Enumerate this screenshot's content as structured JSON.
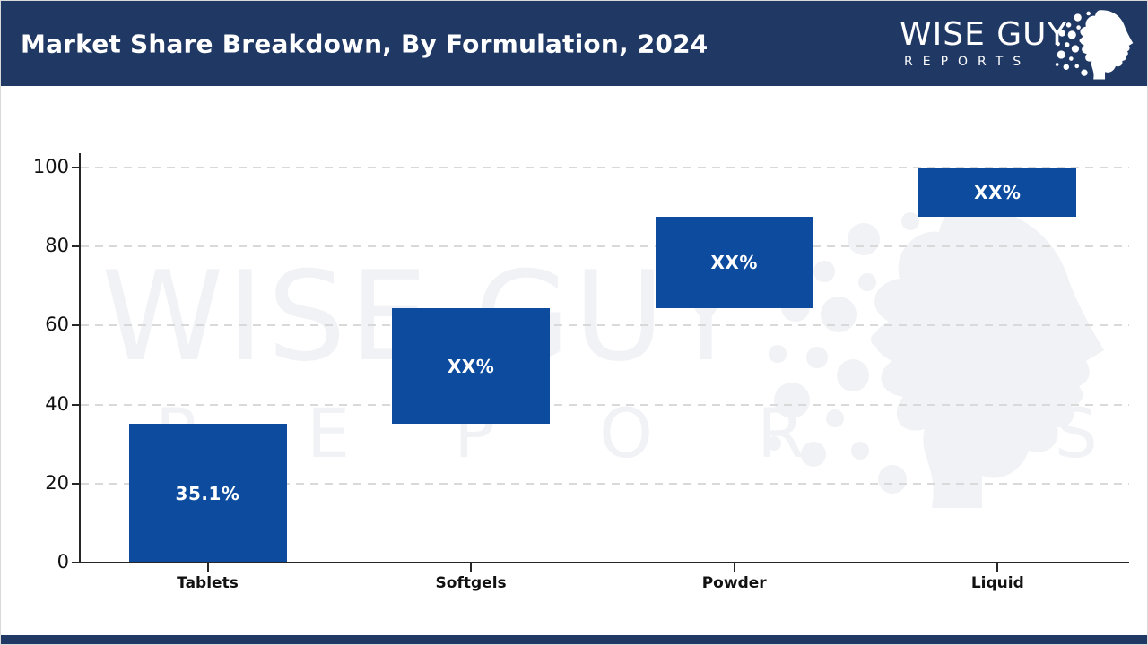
{
  "header": {
    "title": "Market Share Breakdown, By Formulation, 2024",
    "logo": {
      "brand_top": "WISE GUY",
      "brand_bottom": "REPORTS"
    }
  },
  "watermark": {
    "brand_top": "WISE GUY",
    "brand_bottom": "R E P O R T S"
  },
  "chart_data": {
    "type": "bar",
    "variant": "waterfall",
    "title": "Market Share Breakdown, By Formulation, 2024",
    "categories": [
      "Tablets",
      "Softgels",
      "Powder",
      "Liquid"
    ],
    "series": [
      {
        "name": "Market share (%)",
        "segments": [
          {
            "category": "Tablets",
            "start": 0,
            "end": 35.1,
            "label": "35.1%"
          },
          {
            "category": "Softgels",
            "start": 35.1,
            "end": 64.4,
            "label": "XX%"
          },
          {
            "category": "Powder",
            "start": 64.4,
            "end": 87.5,
            "label": "XX%"
          },
          {
            "category": "Liquid",
            "start": 87.5,
            "end": 100,
            "label": "XX%"
          }
        ]
      }
    ],
    "ylim": [
      0,
      100
    ],
    "yticks": [
      0,
      20,
      40,
      60,
      80,
      100
    ],
    "xlabel": "",
    "ylabel": "",
    "grid": {
      "horizontal": true,
      "style": "dashed"
    },
    "legend": "none",
    "bar_color": "#0c4b9e",
    "bar_label_color": "#ffffff"
  },
  "colors": {
    "header_bg": "#1f3864",
    "footer_bg": "#1f3864",
    "bar": "#0c4b9e",
    "axis": "#262626",
    "gridline": "#d9d9d9",
    "tick_text": "#111111",
    "watermark": "#f1f2f5",
    "title_text": "#ffffff"
  }
}
